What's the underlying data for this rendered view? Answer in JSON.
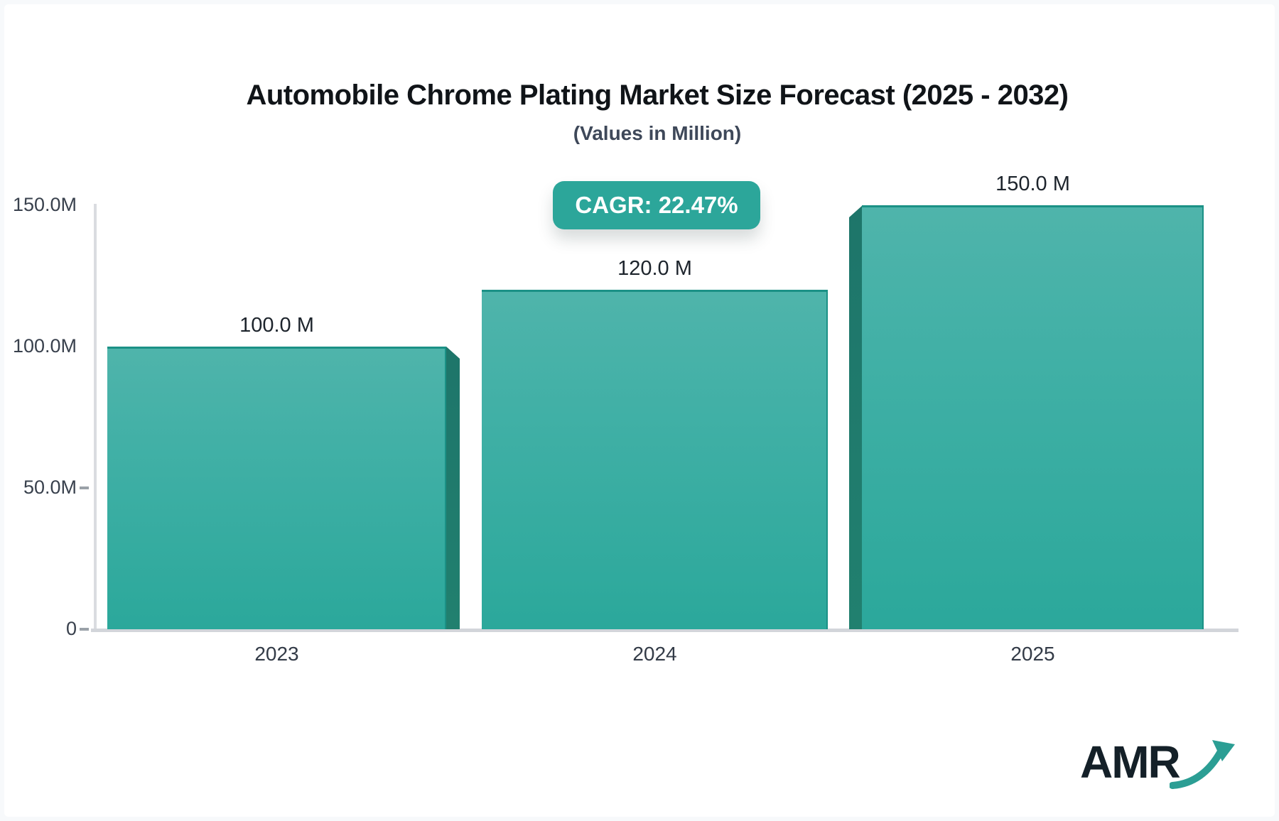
{
  "chart_data": {
    "type": "bar",
    "title": "Automobile Chrome Plating Market Size Forecast (2025 - 2032)",
    "subtitle": "(Values in Million)",
    "cagr_label": "CAGR: 22.47%",
    "categories": [
      "2023",
      "2024",
      "2025"
    ],
    "values": [
      100.0,
      120.0,
      150.0
    ],
    "value_labels": [
      "100.0 M",
      "120.0 M",
      "150.0 M"
    ],
    "ylim": [
      0,
      150
    ],
    "y_ticks": [
      {
        "label": "150.0M",
        "value": 150,
        "tick_mark": false
      },
      {
        "label": "100.0M",
        "value": 100,
        "tick_mark": false
      },
      {
        "label": "50.0M",
        "value": 50,
        "tick_mark": true
      },
      {
        "label": "0",
        "value": 0,
        "tick_mark": true
      }
    ],
    "grid": false,
    "legend": false,
    "colors": {
      "bar_top": "#4fb4ab",
      "bar_bottom": "#2ba89b",
      "bar_edge": "#1b9186",
      "bar_side_3d": "#20786d",
      "badge_background": "#2ca69a",
      "badge_text": "#ffffff",
      "axis_line": "#d4d6da"
    }
  },
  "branding": {
    "logo_text": "AMR",
    "logo_text_color": "#142028",
    "logo_arrow_color": "#2b9e94"
  }
}
